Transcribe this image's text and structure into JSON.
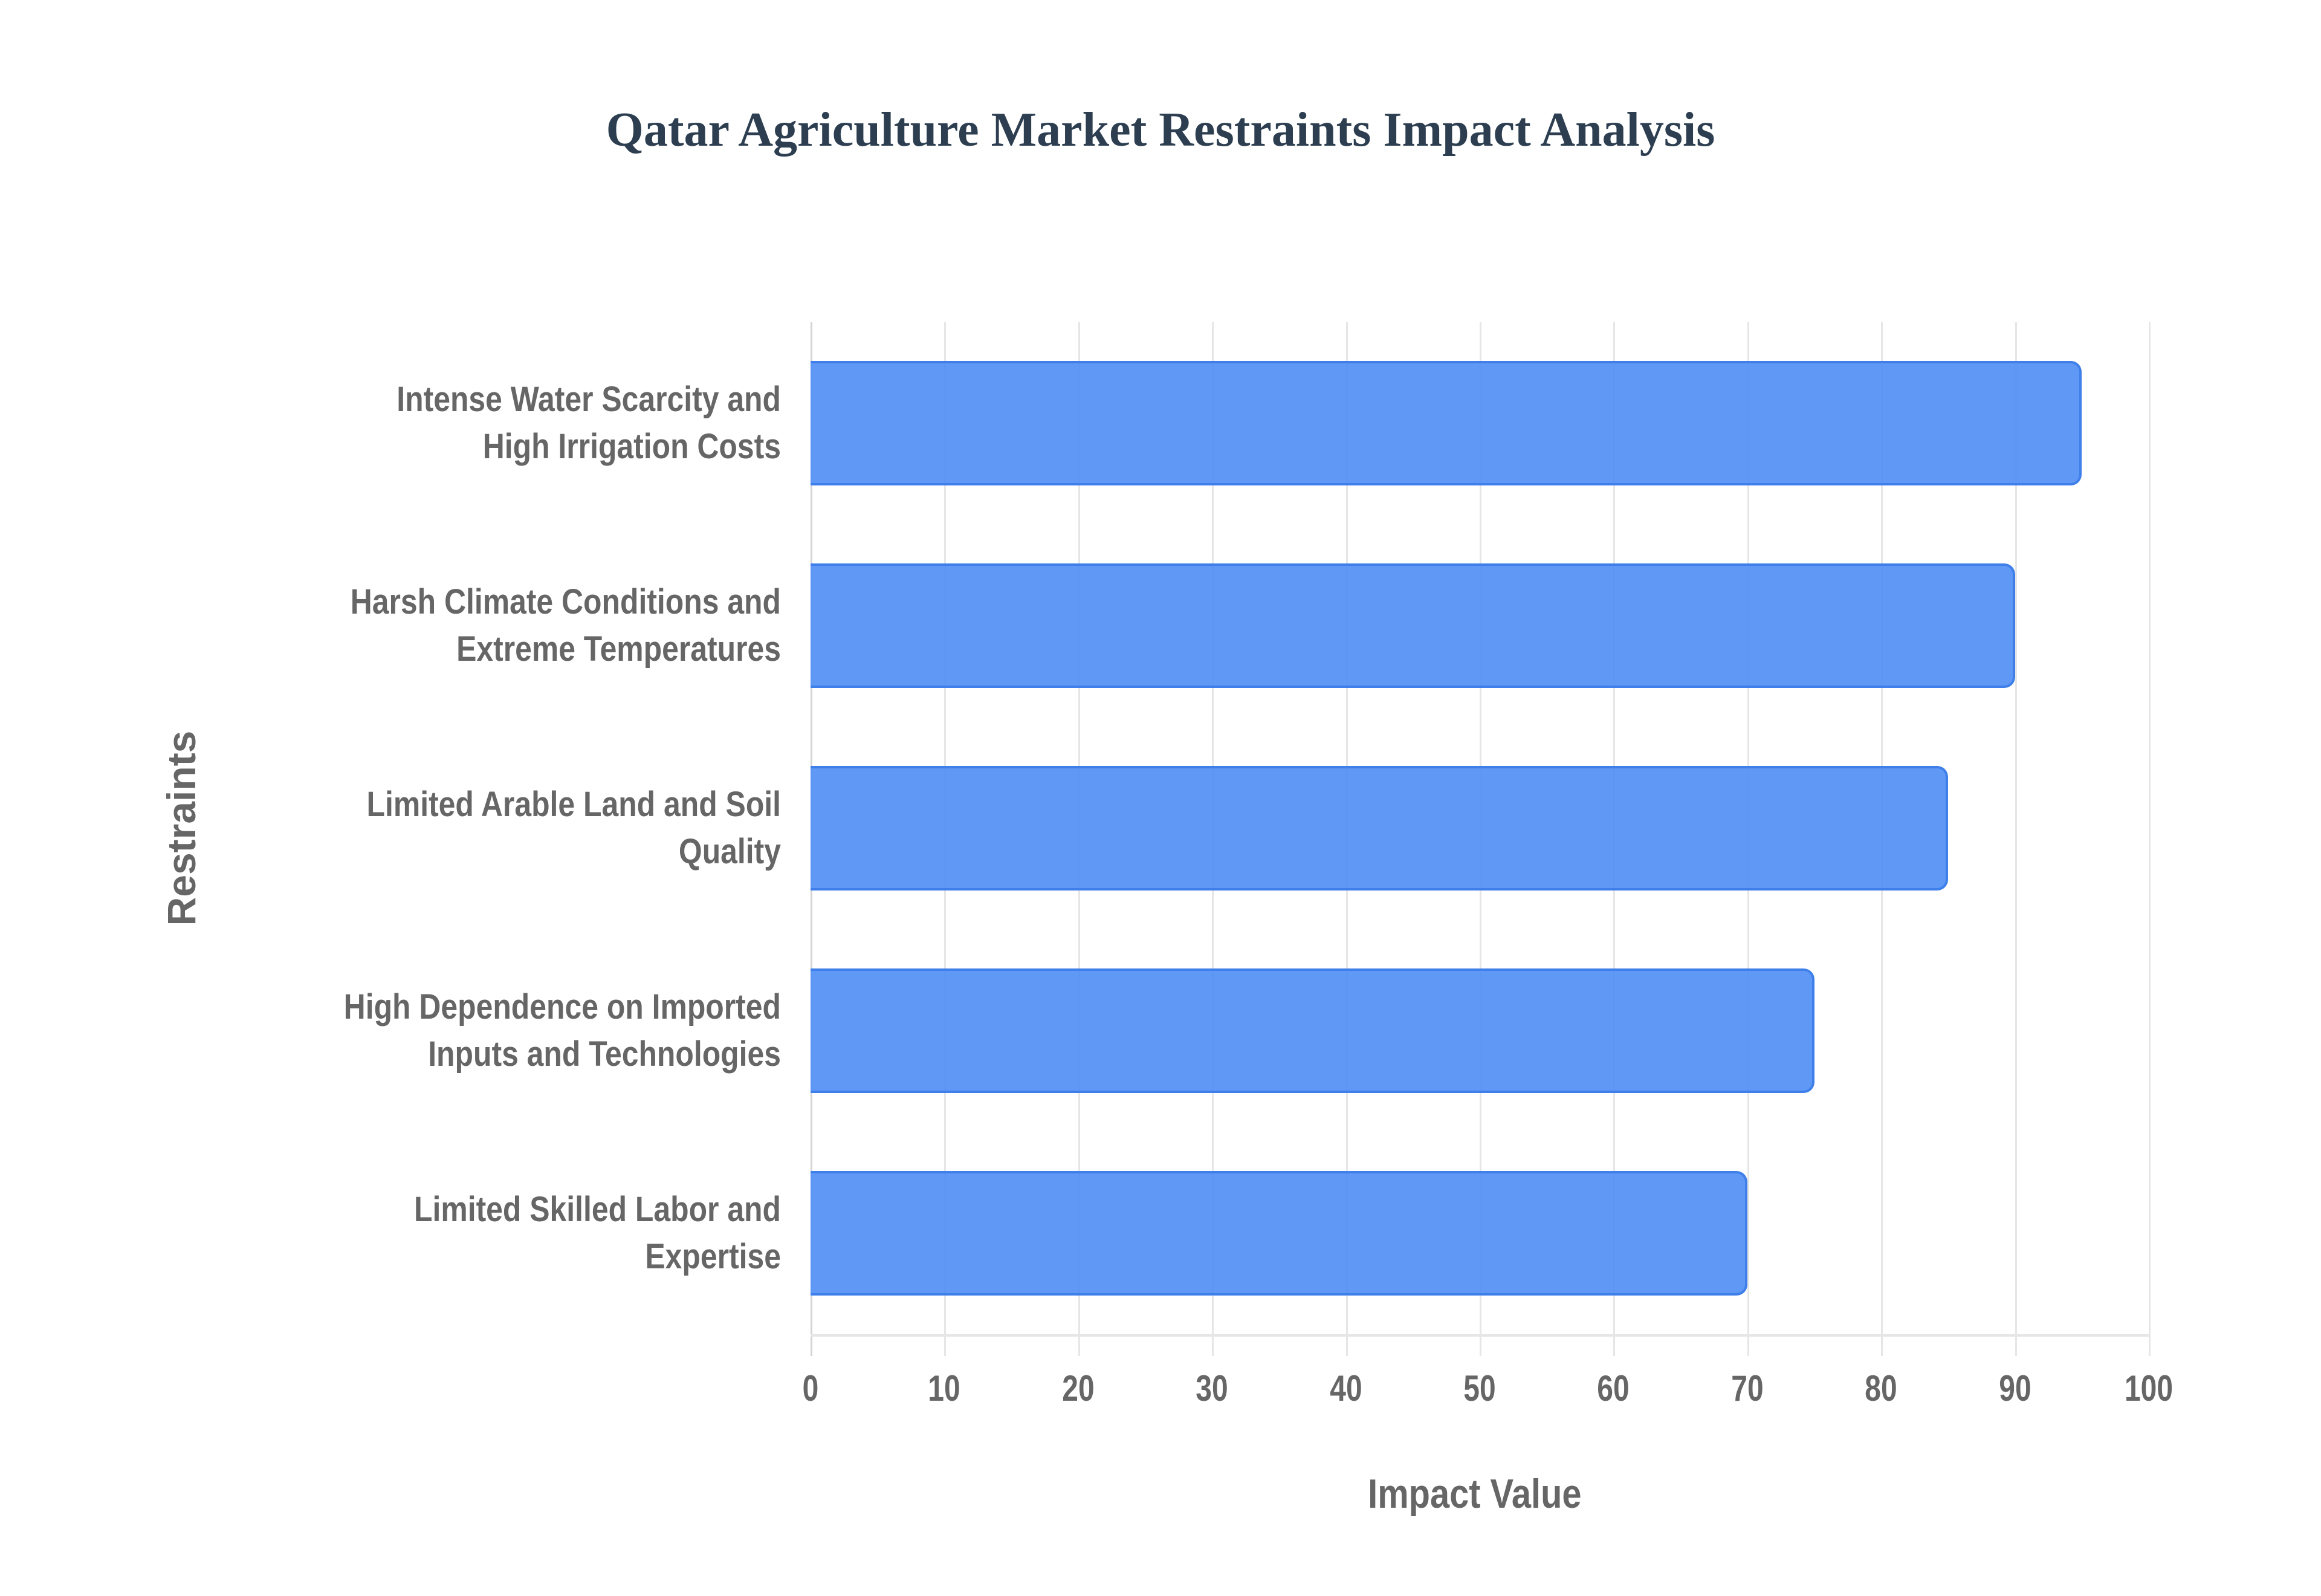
{
  "title": "Qatar Agriculture Market Restraints Impact Analysis",
  "x_axis": {
    "title": "Impact Value",
    "ticks": [
      "0",
      "10",
      "20",
      "30",
      "40",
      "50",
      "60",
      "70",
      "80",
      "90",
      "100"
    ]
  },
  "y_axis": {
    "title": "Restraints"
  },
  "bars": [
    {
      "label_line1": "Intense Water Scarcity and",
      "label_line2": "High Irrigation Costs",
      "value": 95
    },
    {
      "label_line1": "Harsh Climate Conditions and",
      "label_line2": "Extreme Temperatures",
      "value": 90
    },
    {
      "label_line1": "Limited Arable Land and Soil",
      "label_line2": "Quality",
      "value": 85
    },
    {
      "label_line1": "High Dependence on Imported",
      "label_line2": "Inputs and Technologies",
      "value": 75
    },
    {
      "label_line1": "Limited Skilled Labor and",
      "label_line2": "Expertise",
      "value": 70
    }
  ],
  "colors": {
    "bar_fill": "#5e97f6",
    "bar_border": "#3f7fea",
    "title": "#2c3e50",
    "axis_text": "#666666",
    "grid": "#e6e6e6"
  },
  "chart_data": {
    "type": "bar",
    "orientation": "horizontal",
    "title": "Qatar Agriculture Market Restraints Impact Analysis",
    "categories": [
      "Intense Water Scarcity and High Irrigation Costs",
      "Harsh Climate Conditions and Extreme Temperatures",
      "Limited Arable Land and Soil Quality",
      "High Dependence on Imported Inputs and Technologies",
      "Limited Skilled Labor and Expertise"
    ],
    "values": [
      95,
      90,
      85,
      75,
      70
    ],
    "xlabel": "Impact Value",
    "ylabel": "Restraints",
    "xlim": [
      0,
      100
    ],
    "xticks": [
      0,
      10,
      20,
      30,
      40,
      50,
      60,
      70,
      80,
      90,
      100
    ],
    "grid": true,
    "legend": null
  }
}
